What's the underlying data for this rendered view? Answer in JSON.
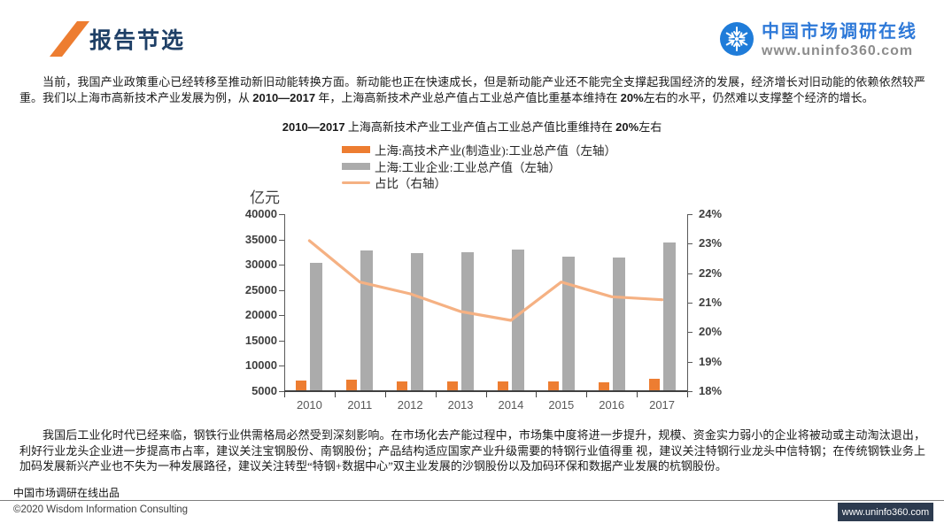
{
  "header": {
    "title": "报告节选",
    "brand_name": "中国市场调研在线",
    "brand_url": "www.uninfo360.com"
  },
  "paragraphs": {
    "p1": {
      "seg1": "当前，我国产业政策重心已经转移至推动新旧动能转换方面。新动能也正在快速成长，但是新动能产业还不能完全支撑起我国经济的发展，经济增长对旧动能的依赖依然较严重。我们以上海市高新技术产业发展为例，从 ",
      "seg2_bold": "2010—2017",
      "seg3": " 年，上海高新技术产业总产值占工业总产值比重基本维持在 ",
      "seg4_bold": "20%",
      "seg5": "左右的水平，仍然难以支撑整个经济的增长。"
    },
    "p2": "我国后工业化时代已经来临，钢铁行业供需格局必然受到深刻影响。在市场化去产能过程中，市场集中度将进一步提升，规模、资金实力弱小的企业将被动或主动淘汰退出，利好行业龙头企业进一步提高市占率，建议关注宝钢股份、南钢股份；产品结构适应国家产业升级需要的特钢行业值得重 视，建议关注特钢行业龙头中信特钢；在传统钢铁业务上加码发展新兴产业也不失为一种发展路径，建议关注转型“特钢+数据中心”双主业发展的沙钢股份以及加码环保和数据产业发展的杭钢股份。"
  },
  "chart_title": {
    "seg1": "2010—2017",
    "seg2": " 上海高新技术产业工业产值占工业总产值比重维持在 ",
    "seg3": "20%",
    "seg4": "左右"
  },
  "chart_data": {
    "type": "bar",
    "subtype": "combo bar + line, dual axis",
    "title": "2010—2017 上海高新技术产业工业产值占工业总产值比重维持在 20%左右",
    "unit_label": "亿元",
    "categories": [
      "2010",
      "2011",
      "2012",
      "2013",
      "2014",
      "2015",
      "2016",
      "2017"
    ],
    "series": [
      {
        "name": "上海:高技术产业(制造业):工业总产值（左轴）",
        "type": "bar",
        "axis": "left",
        "color": "#ED7D31",
        "values": [
          6980,
          7060,
          6840,
          6690,
          6710,
          6840,
          6640,
          7240
        ]
      },
      {
        "name": "上海:工业企业:工业总产值（左轴）",
        "type": "bar",
        "axis": "left",
        "color": "#ABABAB",
        "values": [
          30200,
          32600,
          32100,
          32300,
          32900,
          31500,
          31300,
          34300
        ]
      },
      {
        "name": "占比（右轴）",
        "type": "line",
        "axis": "right",
        "color": "#F5B183",
        "values": [
          23.1,
          21.7,
          21.3,
          20.7,
          20.4,
          21.7,
          21.2,
          21.1
        ]
      }
    ],
    "left_axis": {
      "min": 5000,
      "max": 40000,
      "ticks": [
        "40000",
        "35000",
        "30000",
        "25000",
        "20000",
        "15000",
        "10000",
        "5000"
      ]
    },
    "right_axis": {
      "min": 18,
      "max": 24,
      "ticks": [
        "24%",
        "23%",
        "22%",
        "21%",
        "20%",
        "19%",
        "18%"
      ]
    },
    "legend_position": "top-center",
    "grid": false
  },
  "footer": {
    "producer": "中国市场调研在线出品",
    "copyright": "©2020 Wisdom Information Consulting",
    "badge_url": "www.uninfo360.com"
  },
  "colors": {
    "accent_orange": "#ED7D31",
    "bar_gray": "#ABABAB",
    "line_peach": "#F5B183",
    "title_navy": "#1E3F66",
    "brand_blue": "#2E79D8",
    "badge_navy": "#2D3B4F"
  }
}
